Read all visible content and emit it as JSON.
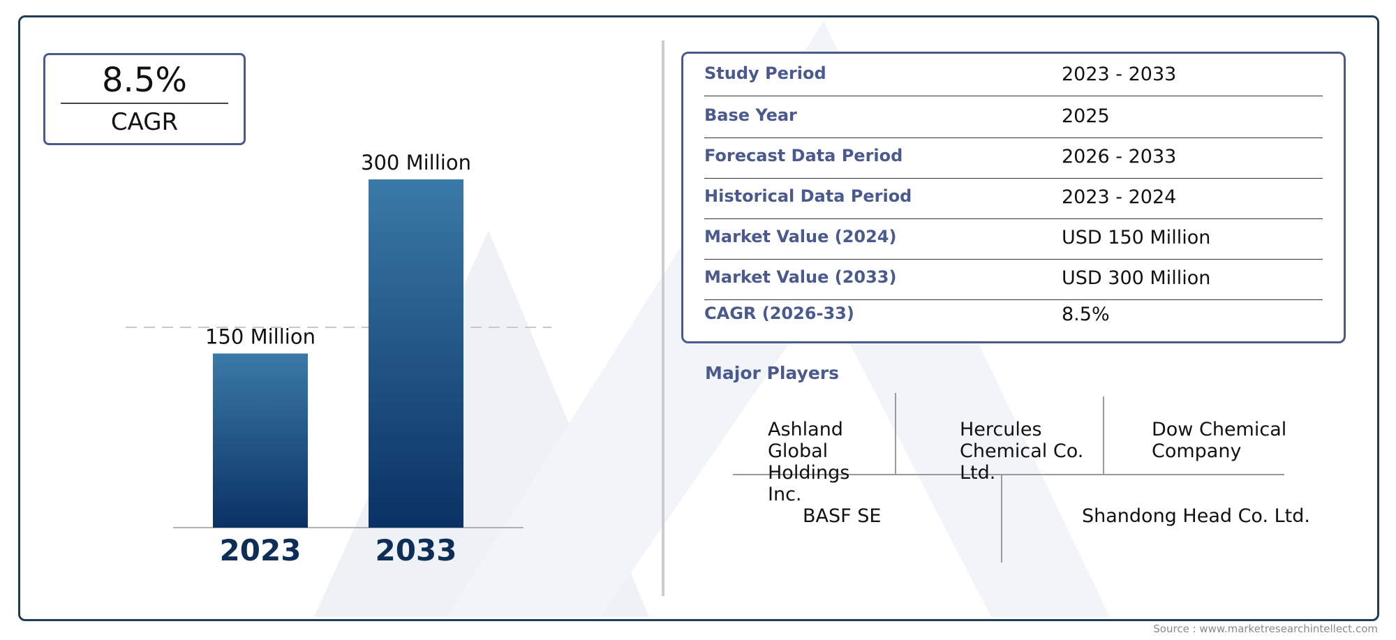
{
  "cagr": {
    "value": "8.5%",
    "label": "CAGR"
  },
  "chart_data": {
    "type": "bar",
    "categories": [
      "2023",
      "2033"
    ],
    "values": [
      150,
      300
    ],
    "data_labels": [
      "150 Million",
      "300 Million"
    ],
    "ylim": [
      0,
      300
    ],
    "grid": false,
    "colors": {
      "top": "#3a7aa8",
      "bottom": "#0a3164"
    }
  },
  "market_info": {
    "rows": [
      {
        "key": "Study Period",
        "value": "2023 - 2033"
      },
      {
        "key": "Base Year",
        "value": "2025"
      },
      {
        "key": "Forecast Data Period",
        "value": "2026 - 2033"
      },
      {
        "key": "Historical Data Period",
        "value": "2023 - 2024"
      },
      {
        "key": "Market Value (2024)",
        "value": "USD 150 Million"
      },
      {
        "key": "Market Value (2033)",
        "value": "USD 300 Million"
      },
      {
        "key": "CAGR (2026-33)",
        "value": "8.5%"
      }
    ]
  },
  "major_players": {
    "title": "Major Players",
    "players": [
      "Ashland Global Holdings Inc.",
      "Hercules Chemical Co. Ltd.",
      "Dow Chemical Company",
      "BASF SE",
      "Shandong Head Co. Ltd."
    ]
  },
  "source": "Source : www.marketresearchintellect.com",
  "colors": {
    "accent": "#4a5a8e",
    "frame": "#1f3b57",
    "year_label": "#0e2e57"
  }
}
